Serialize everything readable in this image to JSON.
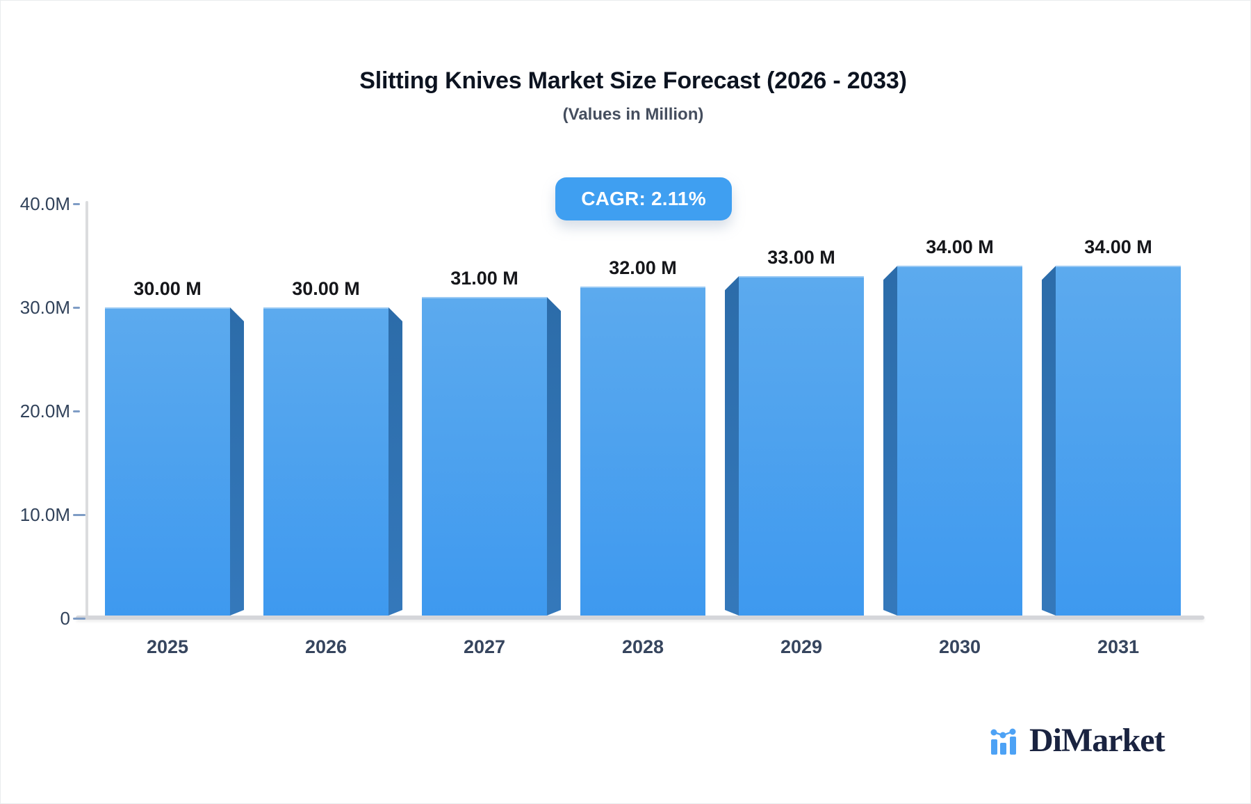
{
  "header": {
    "title": "Slitting Knives Market Size Forecast (2026 - 2033)",
    "subtitle": "(Values in Million)",
    "cagr_badge": "CAGR: 2.11%"
  },
  "chart_data": {
    "type": "bar",
    "title": "Slitting Knives Market Size Forecast (2026 - 2033)",
    "subtitle": "(Values in Million)",
    "cagr_percent": 2.11,
    "categories": [
      "2025",
      "2026",
      "2027",
      "2028",
      "2029",
      "2030",
      "2031"
    ],
    "values": [
      30,
      30,
      31,
      32,
      33,
      34,
      34
    ],
    "bar_labels": [
      "30.00 M",
      "30.00 M",
      "31.00 M",
      "32.00 M",
      "33.00 M",
      "34.00 M",
      "34.00 M"
    ],
    "unit": "Million",
    "xlabel": "",
    "ylabel": "",
    "ylim": [
      0,
      40
    ],
    "yticks": [
      {
        "value": 0,
        "label": "0"
      },
      {
        "value": 10,
        "label": "10.0M"
      },
      {
        "value": 20,
        "label": "20.0M"
      },
      {
        "value": 30,
        "label": "30.0M"
      },
      {
        "value": 40,
        "label": "40.0M"
      }
    ],
    "grid": false,
    "legend": false,
    "style": "3d-extruded-bars"
  },
  "colors": {
    "bar_face_top": "#5caaee",
    "bar_face_bottom": "#3e99ef",
    "bar_side_top": "#2c6ca9",
    "bar_side_bottom": "#3478bb",
    "badge_bg": "#3f9ff1",
    "axis_line": "#dbdcde",
    "baseline": "#d5d6da",
    "tick_dash": "#7e9cc5",
    "y_label_text": "#31425a",
    "x_label_text": "#36455e",
    "value_label_text": "#15161a",
    "title_text": "#0c1320",
    "subtitle_text": "#454e5e",
    "logo_text": "#1a2340",
    "logo_blue": "#4da2f5"
  },
  "logo": {
    "text": "DiMarket"
  }
}
